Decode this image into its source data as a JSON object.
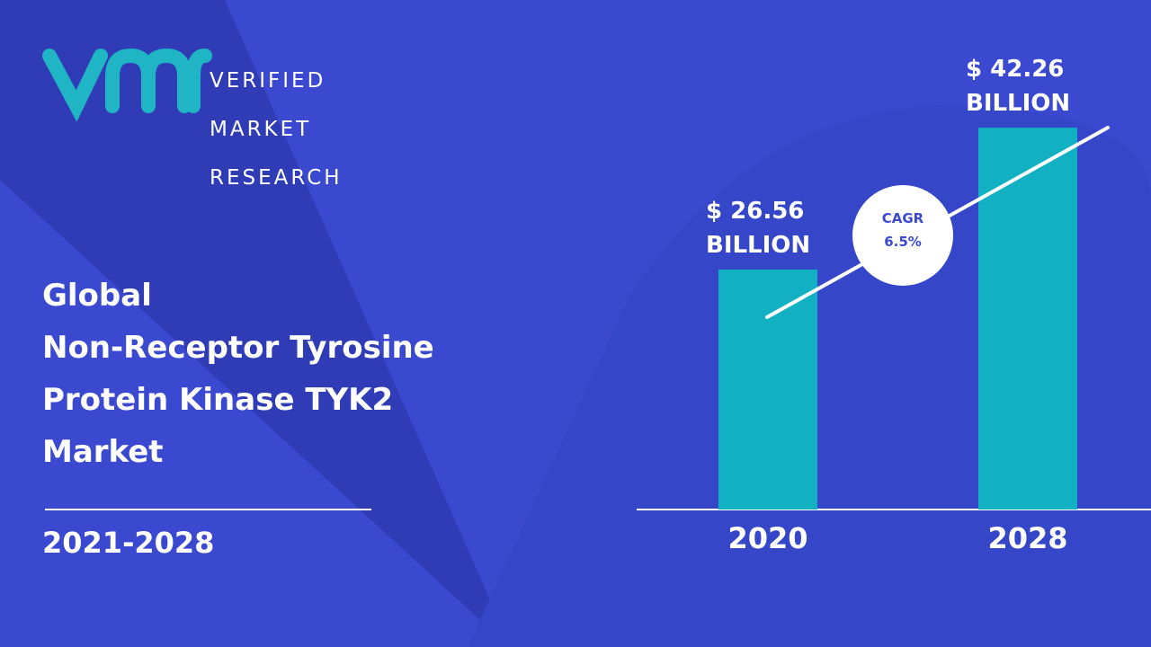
{
  "logo": {
    "lines": [
      "VERIFIED",
      "MARKET",
      "RESEARCH"
    ]
  },
  "chart_data": {
    "type": "bar",
    "title": "Global\nNon-Receptor Tyrosine\nProtein Kinase TYK2\nMarket",
    "subtitle": "2021-2028",
    "annotation": "CAGR\n6.5%",
    "categories": [
      "2020",
      "2028"
    ],
    "values": [
      26.56,
      42.26
    ],
    "value_labels": [
      "$ 26.56\nBILLION",
      "$ 42.26\nBILLION"
    ],
    "color": "#11b0c2",
    "ylim": [
      0,
      56
    ]
  }
}
